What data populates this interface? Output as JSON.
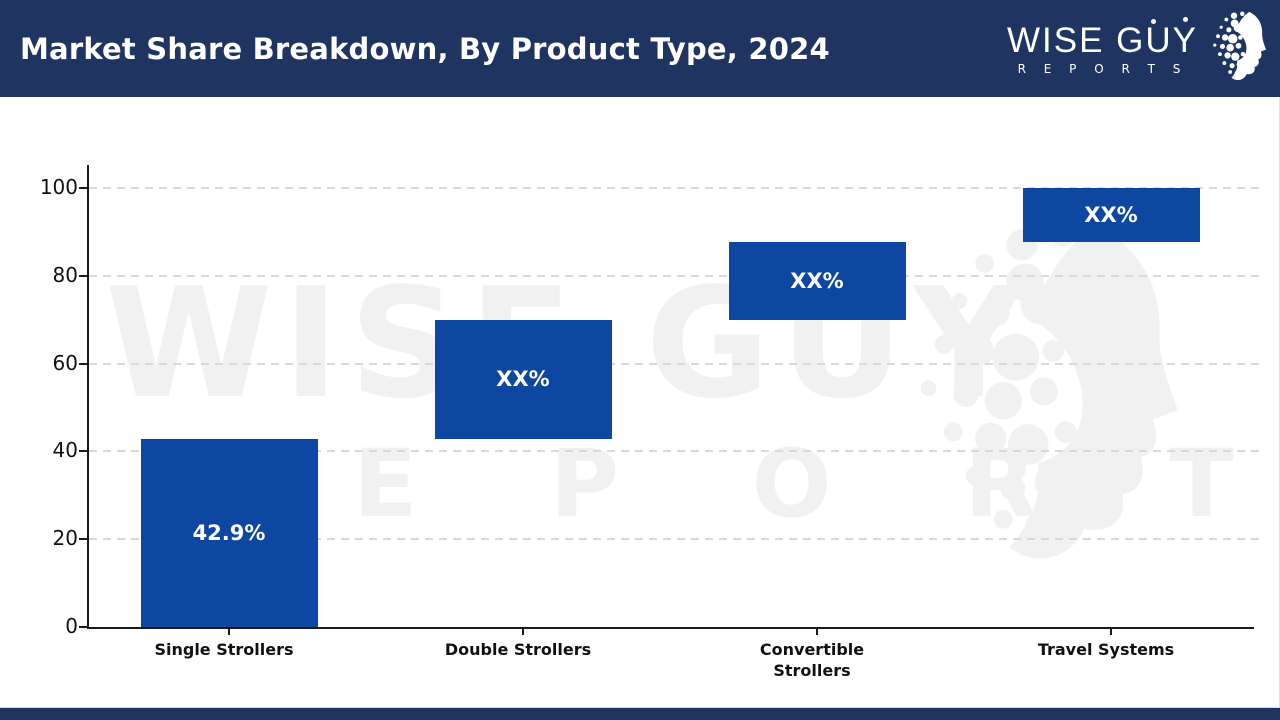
{
  "header": {
    "title": "Market Share Breakdown, By Product Type, 2024",
    "logo_line1": "WISE GUY",
    "logo_line2": "R E P O R T S"
  },
  "watermark": {
    "line1": "WISE GUY",
    "line2": "R E P O R T S"
  },
  "chart_data": {
    "type": "bar",
    "variant": "floating-segment-bars",
    "title": "Market Share Breakdown, By Product Type, 2024",
    "categories": [
      "Single Strollers",
      "Double Strollers",
      "Convertible Strollers",
      "Travel Systems"
    ],
    "segments": [
      {
        "category": "Single Strollers",
        "from": 0,
        "to": 42.9,
        "label": "42.9%"
      },
      {
        "category": "Double Strollers",
        "from": 42.9,
        "to": 69.9,
        "label": "XX%"
      },
      {
        "category": "Convertible Strollers",
        "from": 69.9,
        "to": 87.6,
        "label": "XX%"
      },
      {
        "category": "Travel Systems",
        "from": 87.6,
        "to": 100,
        "label": "XX%"
      }
    ],
    "ylim": [
      0,
      100
    ],
    "yticks": [
      0,
      20,
      40,
      60,
      80,
      100
    ],
    "xlabel": "",
    "ylabel": "",
    "grid": {
      "horizontal": true,
      "style": "dashed"
    },
    "legend": "none",
    "colors": {
      "bar": "#0d47a1",
      "bar_label": "#ffffff",
      "grid": "#d9d9d9",
      "axis": "#1a1a1a",
      "tick_label": "#111111"
    }
  },
  "colors": {
    "header_bg": "#1f3461",
    "header_text": "#ffffff",
    "footer_bg": "#1f3461",
    "watermark": "#f1f1f1"
  }
}
